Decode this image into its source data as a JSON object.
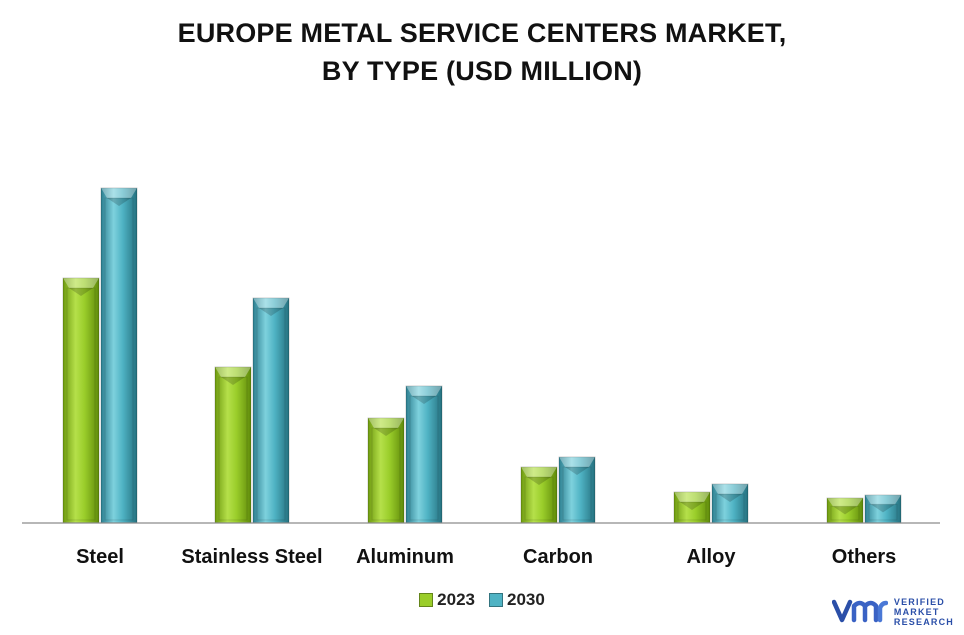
{
  "title_line1": "EUROPE METAL SERVICE CENTERS MARKET,",
  "title_line2": "BY TYPE (USD MILLION)",
  "chart_data": {
    "type": "bar",
    "title": "EUROPE METAL SERVICE CENTERS MARKET, BY TYPE (USD MILLION)",
    "categories": [
      "Steel",
      "Stainless Steel",
      "Aluminum",
      "Carbon",
      "Alloy",
      "Others"
    ],
    "series": [
      {
        "name": "2023",
        "values": [
          245,
          156,
          105,
          56,
          31,
          25
        ],
        "color": "#9acd2a"
      },
      {
        "name": "2030",
        "values": [
          335,
          225,
          137,
          66,
          39,
          28
        ],
        "color": "#4fb3c4"
      }
    ],
    "ylim": [
      0,
      360
    ],
    "grid": false,
    "legend_position": "bottom"
  },
  "logo": {
    "mark": "vmr",
    "line1": "VERIFIED",
    "line2": "MARKET",
    "line3": "RESEARCH",
    "accent": "#2b4fa8"
  }
}
